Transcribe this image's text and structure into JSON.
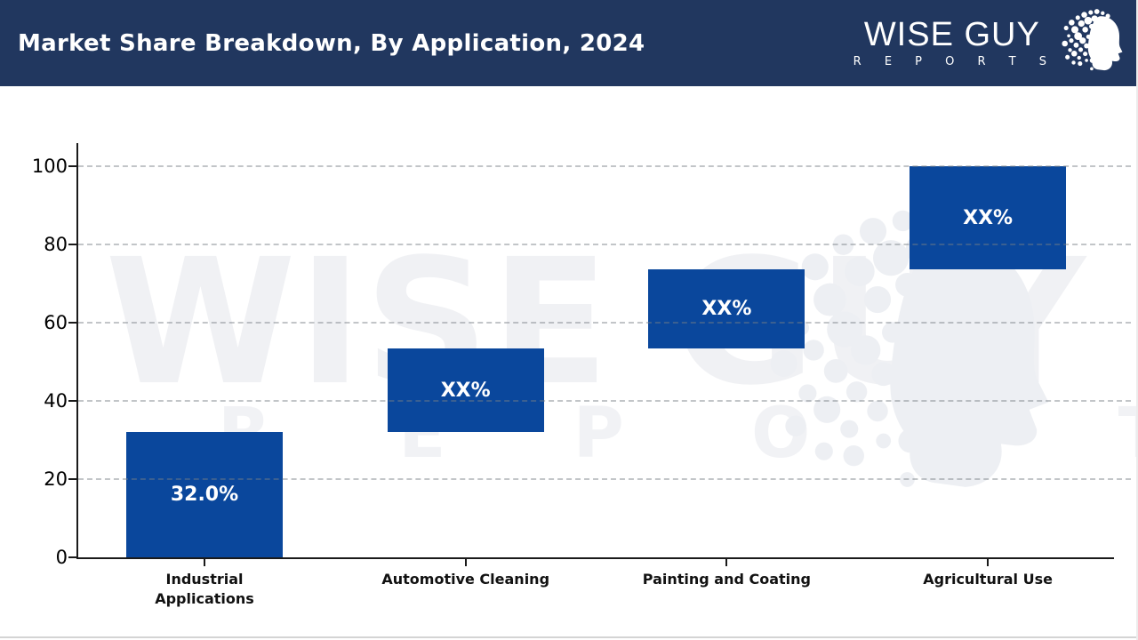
{
  "header": {
    "title": "Market Share Breakdown, By Application, 2024",
    "logo": {
      "line1": "WISE GUY",
      "line2": "R E P O R T S"
    }
  },
  "watermark": {
    "line1": "WISE GUY",
    "line2": "R E P O R T S"
  },
  "chart_data": {
    "type": "bar",
    "subtype": "waterfall",
    "title": "Market Share Breakdown, By Application, 2024",
    "categories": [
      "Industrial Applications",
      "Automotive Cleaning",
      "Painting and Coating",
      "Agricultural Use"
    ],
    "segments": [
      {
        "category": "Industrial Applications",
        "start": 0,
        "end": 32,
        "label": "32.0%"
      },
      {
        "category": "Automotive Cleaning",
        "start": 32,
        "end": 53.4,
        "label": "XX%"
      },
      {
        "category": "Painting and Coating",
        "start": 53.4,
        "end": 73.6,
        "label": "XX%"
      },
      {
        "category": "Agricultural Use",
        "start": 73.6,
        "end": 100,
        "label": "XX%"
      }
    ],
    "xlabel": "",
    "ylabel": "",
    "yticks": [
      0,
      20,
      40,
      60,
      80,
      100
    ],
    "ylim": [
      0,
      105
    ],
    "grid": "horizontal-dashed",
    "legend": "none",
    "colors": {
      "bar": "#0a479c",
      "bar_label": "#ffffff",
      "grid": "rgba(120,126,134,0.45)",
      "axis": "#1a1a1a",
      "header_bg": "#21375f",
      "watermark": "#f0f1f4"
    }
  }
}
